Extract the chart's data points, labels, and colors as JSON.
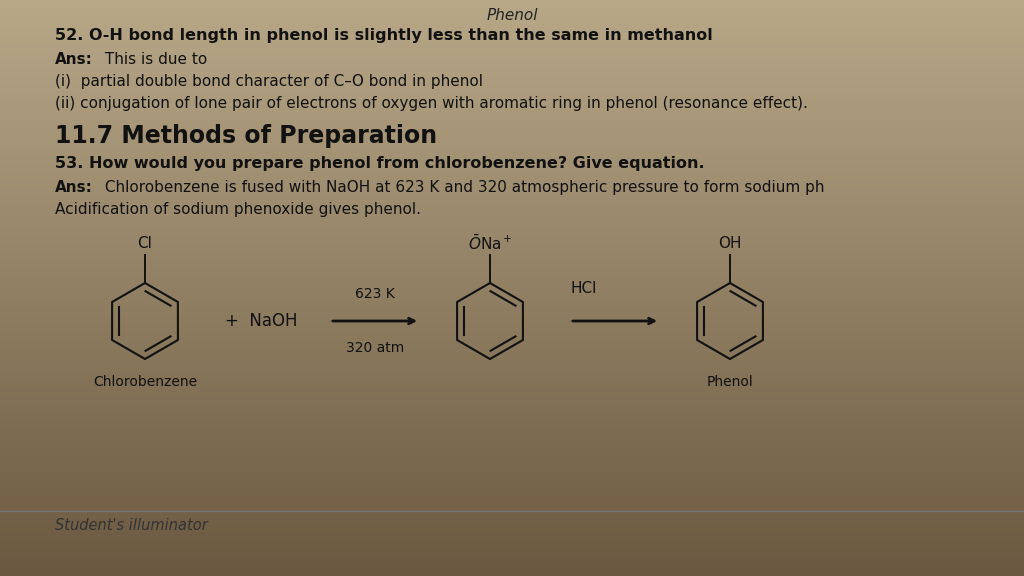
{
  "background_color_top": "#b8a888",
  "background_color_bottom": "#6b5840",
  "top_label": "Phenol",
  "q52_text": "52. O-H bond length in phenol is slightly less than the same in methanol",
  "ans_label": "Ans:",
  "ans_rest": " This is due to",
  "point_i": "(i)  partial double bond character of C–O bond in phenol",
  "point_ii": "(ii) conjugation of lone pair of electrons of oxygen with aromatic ring in phenol (resonance effect).",
  "section_header": "11.7 Methods of Preparation",
  "q53_text": "53. How would you prepare phenol from chlorobenzene? Give equation.",
  "ans53_label": "Ans:",
  "ans53_rest": " Chlorobenzene is fused with NaOH at 623 K and 320 atmospheric pressure to form sodium ph",
  "ans53_line2": "Acidification of sodium phenoxide gives phenol.",
  "footer": "Student's illuminator",
  "text_color": "#111111",
  "label_chloro": "Chlorobenzene",
  "label_phenol": "Phenol",
  "cond_temp": "623 K",
  "cond_press": "320 atm",
  "reagent_naoh": "+ NaOH",
  "reagent_hcl": "HCl"
}
